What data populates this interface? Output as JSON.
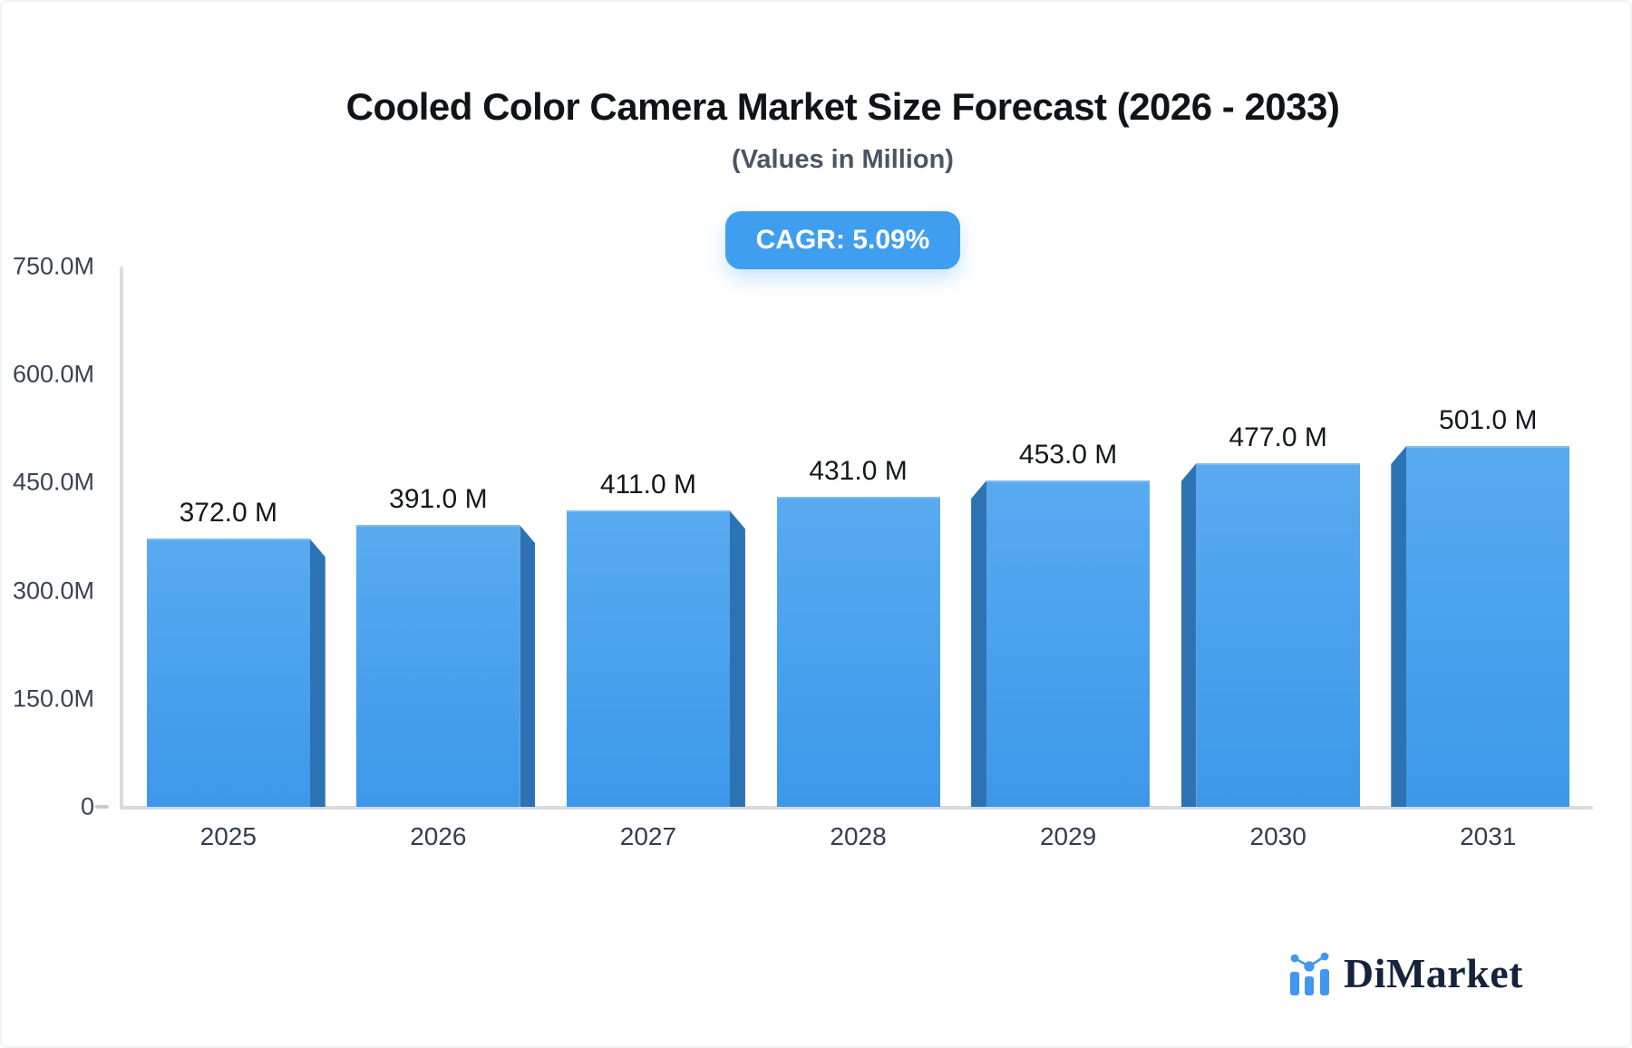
{
  "header": {
    "title": "Cooled Color Camera Market Size Forecast (2026 - 2033)",
    "subtitle": "(Values in Million)",
    "cagr_badge": "CAGR: 5.09%"
  },
  "chart_data": {
    "type": "bar",
    "title": "Cooled Color Camera Market Size Forecast (2026 - 2033)",
    "subtitle": "(Values in Million)",
    "unit": "Million",
    "categories": [
      "2025",
      "2026",
      "2027",
      "2028",
      "2029",
      "2030",
      "2031"
    ],
    "values": [
      372.0,
      391.0,
      411.0,
      431.0,
      453.0,
      477.0,
      501.0
    ],
    "value_labels": [
      "372.0 M",
      "391.0 M",
      "411.0 M",
      "431.0 M",
      "453.0 M",
      "477.0 M",
      "501.0 M"
    ],
    "ylim": [
      0,
      750
    ],
    "ytick_labels": [
      "750.0M",
      "600.0M",
      "450.0M",
      "300.0M",
      "150.0M",
      "0"
    ],
    "grid": false,
    "legend": null,
    "cagr_percent": 5.09,
    "bar_color_front_top": "#59aaf0",
    "bar_color_front_bottom": "#3d98ea",
    "bar_color_side": "#2d73b4",
    "axis_color": "#d8dce0"
  },
  "footer": {
    "brand": "DiMarket",
    "logo_icon": "bar-chart-with-dots-icon",
    "brand_color": "#16233c",
    "icon_color": "#3f97f0"
  }
}
